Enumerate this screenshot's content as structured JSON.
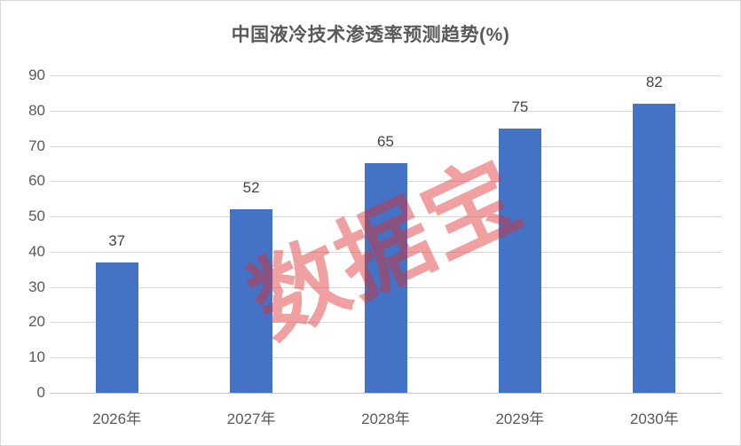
{
  "title": "中国液冷技术渗透率预测趋势(%)",
  "watermark_text": "数据宝",
  "chart_data": {
    "type": "bar",
    "title": "中国液冷技术渗透率预测趋势(%)",
    "categories": [
      "2026年",
      "2027年",
      "2028年",
      "2029年",
      "2030年"
    ],
    "values": [
      37,
      52,
      65,
      75,
      82
    ],
    "data_labels": [
      "37",
      "52",
      "65",
      "75",
      "82"
    ],
    "xlabel": "",
    "ylabel": "",
    "ylim": [
      0,
      90
    ],
    "yticks": [
      0,
      10,
      20,
      30,
      40,
      50,
      60,
      70,
      80,
      90
    ],
    "grid": true,
    "legend": false
  },
  "colors": {
    "bar": "#4472C4",
    "gridline": "#D9D9D9",
    "axis_line": "#C9C9C9",
    "title_text": "#595959",
    "tick_text": "#595959",
    "value_text": "#444444",
    "watermark": "rgba(222,44,44,0.45)",
    "frame_border": "#D9D9D9",
    "background": "#FFFFFF"
  }
}
